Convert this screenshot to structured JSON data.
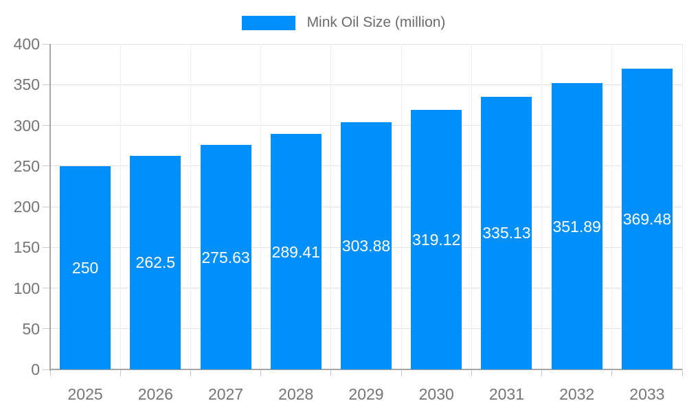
{
  "chart_data": {
    "type": "bar",
    "title": "Mink Oil Size (million)",
    "categories": [
      "2025",
      "2026",
      "2027",
      "2028",
      "2029",
      "2030",
      "2031",
      "2032",
      "2033"
    ],
    "values": [
      250,
      262.5,
      275.63,
      289.41,
      303.88,
      319.12,
      335.13,
      351.89,
      369.48
    ],
    "value_labels": [
      "250",
      "262.5",
      "275.63",
      "289.41",
      "303.88",
      "319.12",
      "335.13",
      "351.89",
      "369.48"
    ],
    "xlabel": "",
    "ylabel": "",
    "ylim": [
      0,
      400
    ],
    "yticks": [
      0,
      50,
      100,
      150,
      200,
      250,
      300,
      350,
      400
    ],
    "grid": true,
    "legend_position": "top",
    "colors": {
      "bar": "#008FFB",
      "bar_value_text": "#ffffff",
      "axis_text": "#757575",
      "legend_text": "#6b6b6b",
      "grid_h": "#e3e3e3",
      "grid_v": "#efefef",
      "axis_line": "#a6a6a6",
      "tick": "#c9c9c9",
      "background": "#ffffff"
    }
  }
}
